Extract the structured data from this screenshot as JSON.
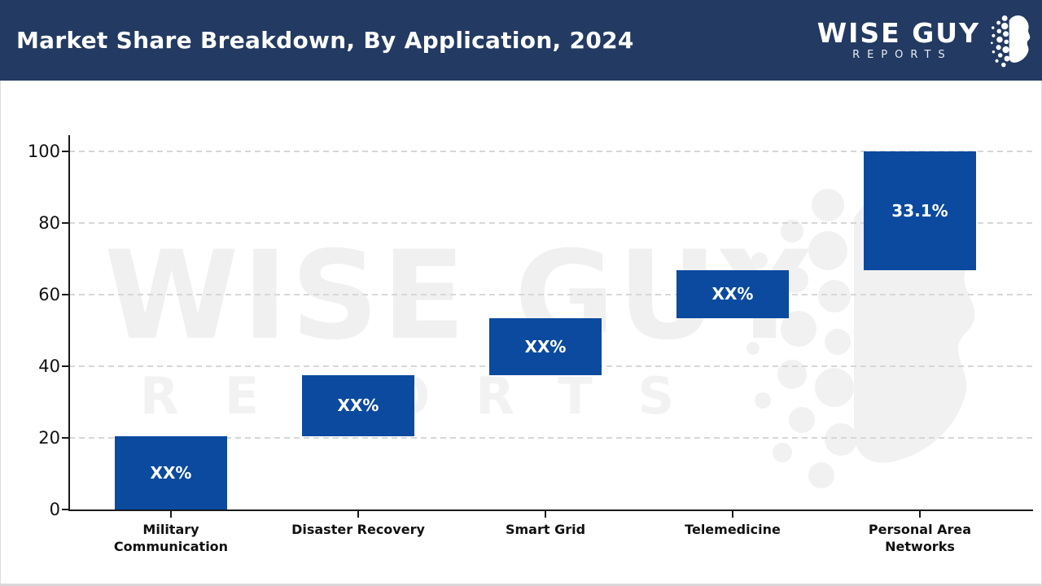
{
  "header": {
    "title": "Market Share Breakdown, By Application, 2024",
    "logo": {
      "brand": "WISE GUY",
      "tagline": "REPORTS",
      "icon": "dotted-face-profile"
    }
  },
  "watermark": {
    "brand": "WISE GUY",
    "tagline": "REPORTS",
    "icon": "dotted-face-profile"
  },
  "colors": {
    "header_background": "#233a62",
    "bar": "#0b4a9e",
    "bar_label": "#ffffff",
    "grid": "#d7d7d7",
    "axis": "#1a1a1a",
    "watermark": "#f1f1f1"
  },
  "chart_data": {
    "type": "bar",
    "subtype": "waterfall-floating-bars",
    "title": "Market Share Breakdown, By Application, 2024",
    "categories": [
      "Military Communication",
      "Disaster Recovery",
      "Smart Grid",
      "Telemedicine",
      "Personal Area Networks"
    ],
    "category_lines": [
      [
        "Military",
        "Communication"
      ],
      [
        "Disaster Recovery"
      ],
      [
        "Smart Grid"
      ],
      [
        "Telemedicine"
      ],
      [
        "Personal Area",
        "Networks"
      ]
    ],
    "segments": [
      {
        "category": "Military Communication",
        "start": 0,
        "end": 20.5,
        "label": "XX%"
      },
      {
        "category": "Disaster Recovery",
        "start": 20.5,
        "end": 37.5,
        "label": "XX%"
      },
      {
        "category": "Smart Grid",
        "start": 37.5,
        "end": 53.5,
        "label": "XX%"
      },
      {
        "category": "Telemedicine",
        "start": 53.5,
        "end": 66.9,
        "label": "XX%"
      },
      {
        "category": "Personal Area Networks",
        "start": 66.9,
        "end": 100,
        "label": "33.1%"
      }
    ],
    "yticks": [
      0,
      20,
      40,
      60,
      80,
      100
    ],
    "ylim": [
      0,
      105
    ],
    "xlabel": "",
    "ylabel": "",
    "grid": "horizontal-dashed",
    "legend": false,
    "bar_color": "#0b4a9e"
  }
}
